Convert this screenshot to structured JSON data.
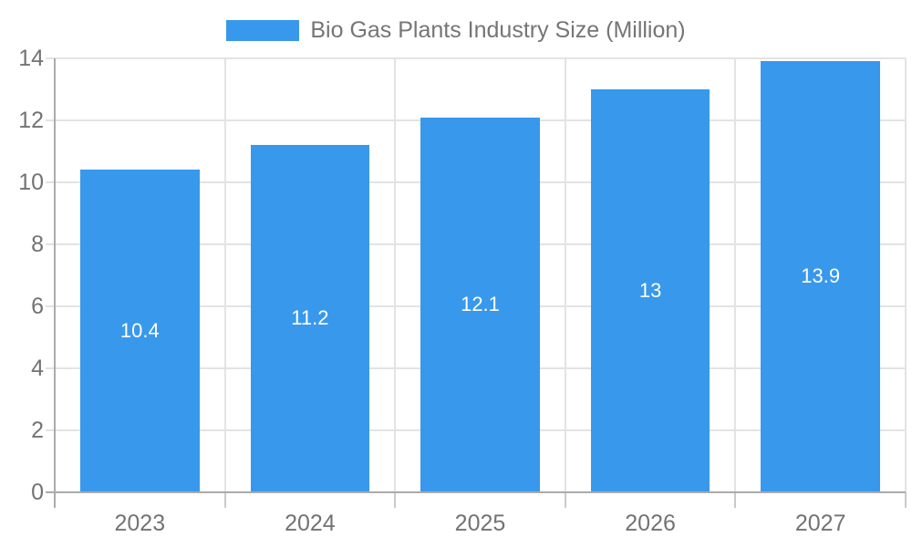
{
  "legend": {
    "label": "Bio Gas Plants Industry Size (Million)"
  },
  "chart_data": {
    "type": "bar",
    "title": "Bio Gas Plants Industry Size (Million)",
    "categories": [
      "2023",
      "2024",
      "2025",
      "2026",
      "2027"
    ],
    "values": [
      10.4,
      11.2,
      12.1,
      13,
      13.9
    ],
    "bar_labels": [
      "10.4",
      "11.2",
      "12.1",
      "13",
      "13.9"
    ],
    "xlabel": "",
    "ylabel": "",
    "ylim": [
      0,
      14
    ],
    "yticks": [
      0,
      2,
      4,
      6,
      8,
      10,
      12,
      14
    ],
    "legend_position": "top-center",
    "grid": true,
    "bar_label_position": "center",
    "colors": {
      "bar": "#3898EC",
      "grid": "#E3E3E3",
      "axis_line": "#ABABAB",
      "boundary_tick": "#C9C9C9",
      "tick_text": "#737373",
      "bar_label_text": "#FFFFFF",
      "legend_text": "#757575"
    }
  }
}
